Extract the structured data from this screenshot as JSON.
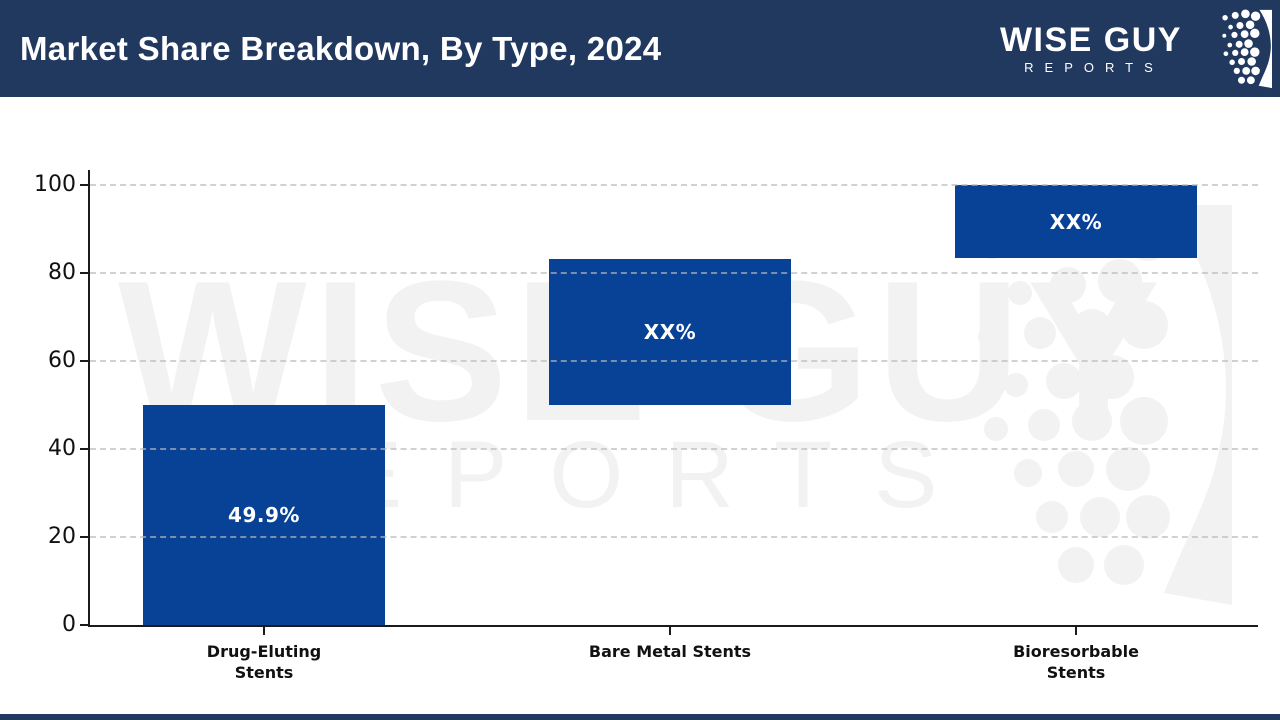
{
  "header": {
    "title": "Market Share Breakdown, By Type, 2024",
    "logo": {
      "line1": "WISE GUY",
      "line2": "REPORTS"
    }
  },
  "watermark": {
    "line1": "WISE GUY",
    "line2": "REPORTS"
  },
  "colors": {
    "header_bg": "#21385f",
    "footer_bg": "#21385f",
    "bar": "#084297",
    "bar_label": "#ffffff",
    "axis": "#1a1a1a",
    "grid": "#b9b9b9",
    "tick_label": "#111111",
    "watermark": "#f2f2f2"
  },
  "chart_data": {
    "type": "bar",
    "variant": "waterfall",
    "title": "Market Share Breakdown, By Type, 2024",
    "categories": [
      "Drug-Eluting\nStents",
      "Bare Metal Stents",
      "Bioresorbable\nStents"
    ],
    "series": [
      {
        "name": "Market share (%)",
        "segments": [
          {
            "category": "Drug-Eluting Stents",
            "start": 0,
            "end": 49.9,
            "label": "49.9%"
          },
          {
            "category": "Bare Metal Stents",
            "start": 49.9,
            "end": 83.3,
            "label": "XX%"
          },
          {
            "category": "Bioresorbable Stents",
            "start": 83.3,
            "end": 100,
            "label": "XX%"
          }
        ]
      }
    ],
    "xlabel": "",
    "ylabel": "",
    "ylim": [
      0,
      103.6
    ],
    "yticks": [
      0,
      20,
      40,
      60,
      80,
      100
    ],
    "grid": "horizontal dashed",
    "legend_position": "none"
  }
}
